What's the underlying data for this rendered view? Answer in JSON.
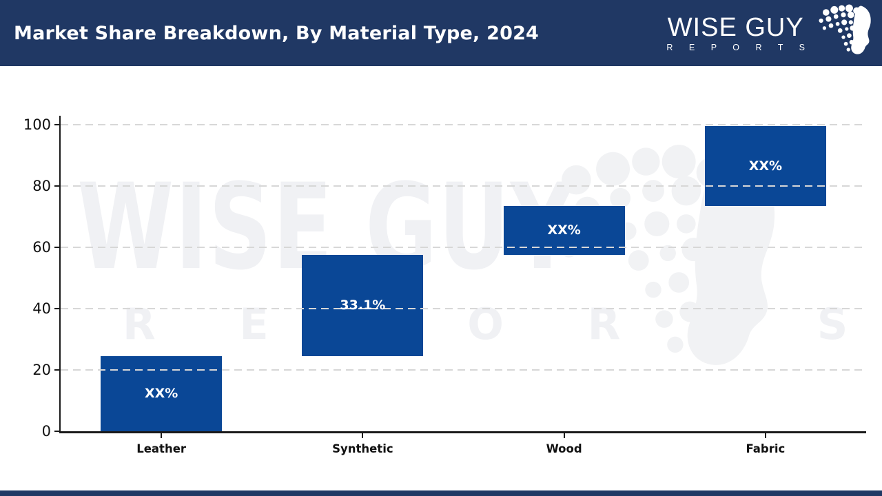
{
  "header": {
    "title": "Market Share Breakdown, By Material Type, 2024"
  },
  "brand": {
    "name_top": "WISE GUY",
    "name_bottom": "R E P O R T S"
  },
  "watermark": {
    "text_top": "WISE GUY",
    "text_bottom": "R E P O R T S"
  },
  "chart_data": {
    "type": "bar",
    "subtype": "waterfall-floating-bars",
    "title": "Market Share Breakdown, By Material Type, 2024",
    "categories": [
      "Leather",
      "Synthetic",
      "Wood",
      "Fabric"
    ],
    "segments": [
      {
        "category": "Leather",
        "start": 0,
        "end": 24.5,
        "label": "XX%"
      },
      {
        "category": "Synthetic",
        "start": 24.5,
        "end": 57.6,
        "label": "33.1%"
      },
      {
        "category": "Wood",
        "start": 57.6,
        "end": 73.5,
        "label": "XX%"
      },
      {
        "category": "Fabric",
        "start": 73.5,
        "end": 99.5,
        "label": "XX%"
      }
    ],
    "xlabel": "",
    "ylabel": "",
    "ylim": [
      0,
      100
    ],
    "yticks": [
      0,
      20,
      40,
      60,
      80,
      100
    ],
    "grid": "horizontal-dashed, drawn over bars",
    "legend": "none",
    "bar_color": "#0a4796",
    "bar_label_color": "#ffffff"
  },
  "colors": {
    "header_bg": "#203864",
    "footer_bg": "#203864",
    "bar": "#0a4796",
    "grid": "#d7d7d7",
    "axis": "#1a1a1a",
    "watermark": "#f0f1f4",
    "page_bg": "#ffffff",
    "title_text": "#ffffff"
  }
}
